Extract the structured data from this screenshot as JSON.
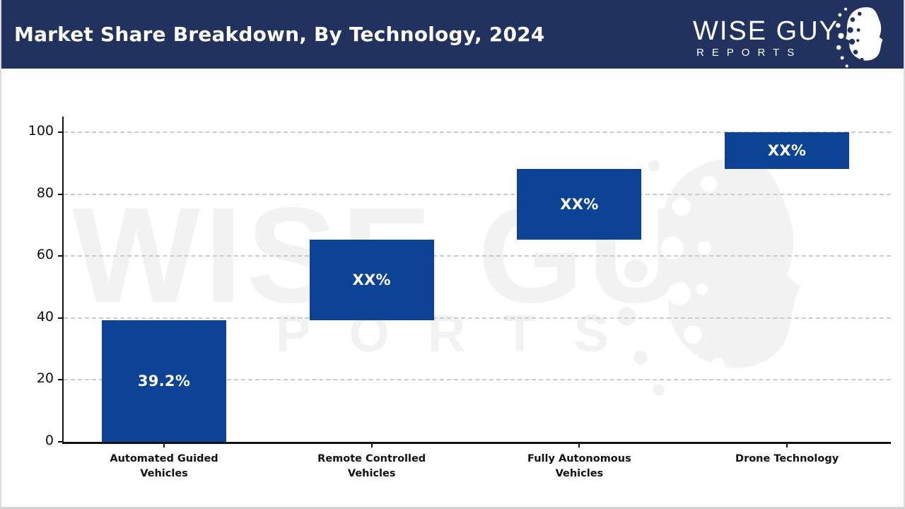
{
  "header": {
    "title": "Market Share Breakdown, By Technology, 2024",
    "bg_color": "#22325f",
    "logo": {
      "line1": "WISE GUY",
      "line2": "REPORTS"
    }
  },
  "watermark": {
    "line1": "WISE GUY",
    "line2": "PORTS"
  },
  "chart_data": {
    "type": "bar",
    "subtype": "floating-range-waterfall",
    "title": "Market Share Breakdown, By Technology, 2024",
    "categories": [
      "Automated Guided\nVehicles",
      "Remote Controlled\nVehicles",
      "Fully Autonomous\nVehicles",
      "Drone Technology"
    ],
    "bars": [
      {
        "category": "Automated Guided Vehicles",
        "start": 0,
        "end": 39.2,
        "label": "39.2%"
      },
      {
        "category": "Remote Controlled Vehicles",
        "start": 39.2,
        "end": 65.3,
        "label": "XX%"
      },
      {
        "category": "Fully Autonomous Vehicles",
        "start": 65.3,
        "end": 88.1,
        "label": "XX%"
      },
      {
        "category": "Drone Technology",
        "start": 88.1,
        "end": 100,
        "label": "XX%"
      }
    ],
    "segment_values": [
      39.2,
      26.1,
      22.8,
      11.9
    ],
    "xlabel": "",
    "ylabel": "",
    "ylim": [
      0,
      100
    ],
    "yticks": [
      0,
      20,
      40,
      60,
      80,
      100
    ],
    "grid": "horizontal-dashed",
    "legend": "none",
    "colors": {
      "bar": "#0d4394",
      "bar_label": "#ffffff",
      "gridline": "#cccccc",
      "axis": "#111111",
      "tick_text": "#111111",
      "watermark": "#f2f2f2"
    }
  }
}
